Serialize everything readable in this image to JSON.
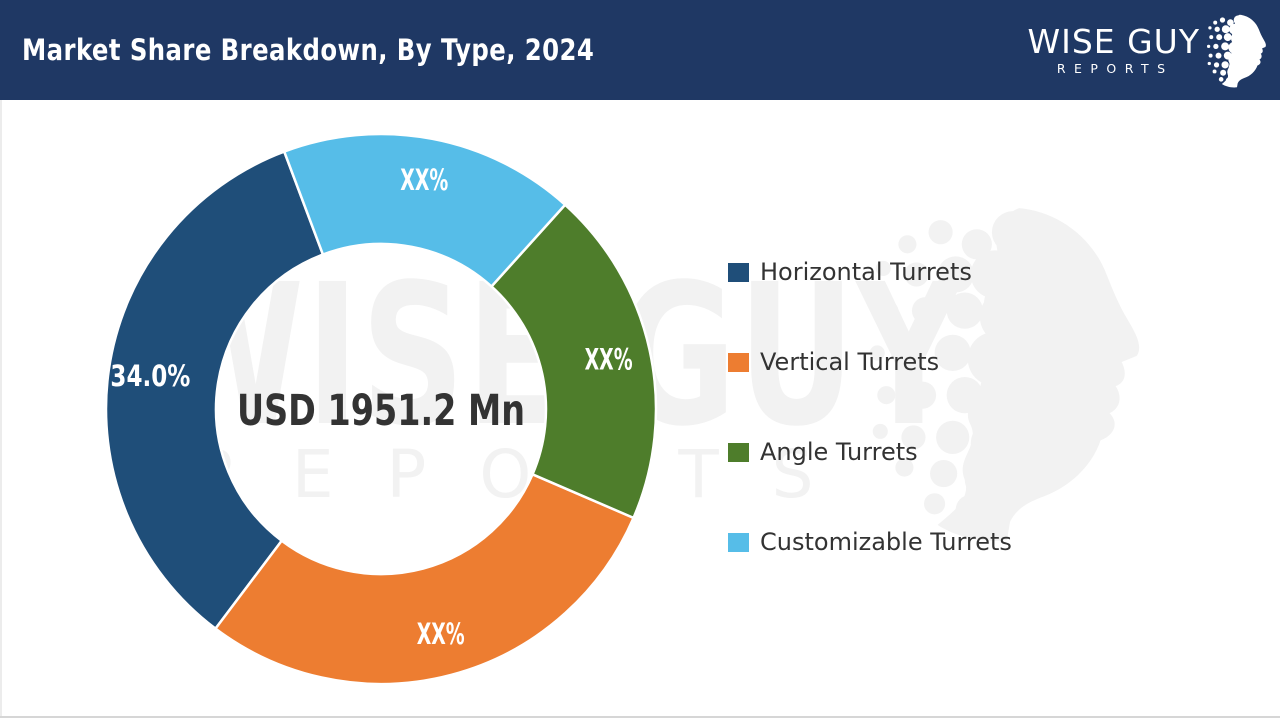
{
  "header": {
    "title": "Market Share Breakdown, By Type, 2024",
    "background_color": "#1f3864",
    "logo": {
      "line1": "WISE GUY",
      "line2": "REPORTS"
    }
  },
  "watermark": {
    "line1": "WISE GUY",
    "line2": "REPORTS",
    "color": "#f2f2f2"
  },
  "chart_data": {
    "type": "donut",
    "title": "Market Share Breakdown, By Type, 2024",
    "center_label": "USD 1951.2 Mn",
    "start_angle_deg": 110.6,
    "direction": "counterclockwise",
    "inner_radius_ratio": 0.6,
    "legend_position": "right",
    "segments": [
      {
        "name": "Horizontal Turrets",
        "display_label": "34.0%",
        "value_pct": 34.0,
        "color": "#1f4e79"
      },
      {
        "name": "Vertical Turrets",
        "display_label": "XX%",
        "value_pct": 28.8,
        "color": "#ed7d31"
      },
      {
        "name": "Angle Turrets",
        "display_label": "XX%",
        "value_pct": 19.8,
        "color": "#4e7d2b"
      },
      {
        "name": "Customizable Turrets",
        "display_label": "XX%",
        "value_pct": 17.4,
        "color": "#56bde8"
      }
    ]
  }
}
